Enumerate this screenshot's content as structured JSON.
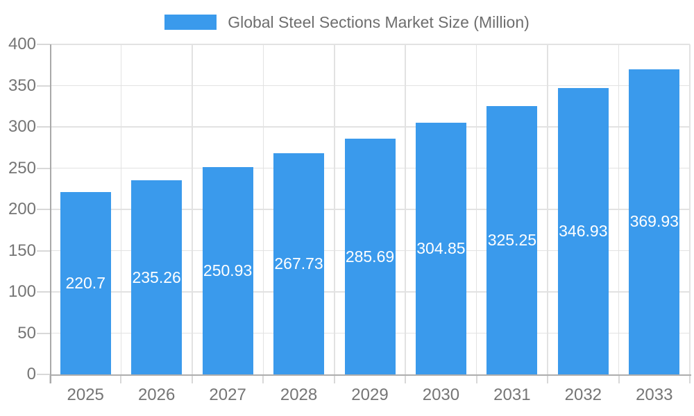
{
  "legend": {
    "label": "Global Steel Sections Market Size (Million)"
  },
  "chart_data": {
    "type": "bar",
    "title": "Global Steel Sections Market Size (Million)",
    "categories": [
      "2025",
      "2026",
      "2027",
      "2028",
      "2029",
      "2030",
      "2031",
      "2032",
      "2033"
    ],
    "series": [
      {
        "name": "Global Steel Sections Market Size (Million)",
        "values": [
          220.7,
          235.26,
          250.93,
          267.73,
          285.69,
          304.85,
          325.25,
          346.93,
          369.93
        ]
      }
    ],
    "value_labels": [
      "220.7",
      "235.26",
      "250.93",
      "267.73",
      "285.69",
      "304.85",
      "325.25",
      "346.93",
      "369.93"
    ],
    "value_label_position": "center-of-bar",
    "xlabel": "",
    "ylabel": "",
    "ylim": [
      0,
      400
    ],
    "ytick_interval": 50,
    "ytick_labels": [
      "0",
      "50",
      "100",
      "150",
      "200",
      "250",
      "300",
      "350",
      "400"
    ],
    "grid": true,
    "legend_position": "top",
    "colors": {
      "bar": "#3A9AEC",
      "legend_text": "#6E6E6E",
      "axis_text": "#757575",
      "value_label_text": "#FFFFFF",
      "gridline": "#E2E2E2",
      "tick": "#D8D8D8",
      "y_axis_line": "#A9A9A9",
      "x_axis_line": "#ADADAD",
      "background": "#FFFFFF"
    }
  }
}
